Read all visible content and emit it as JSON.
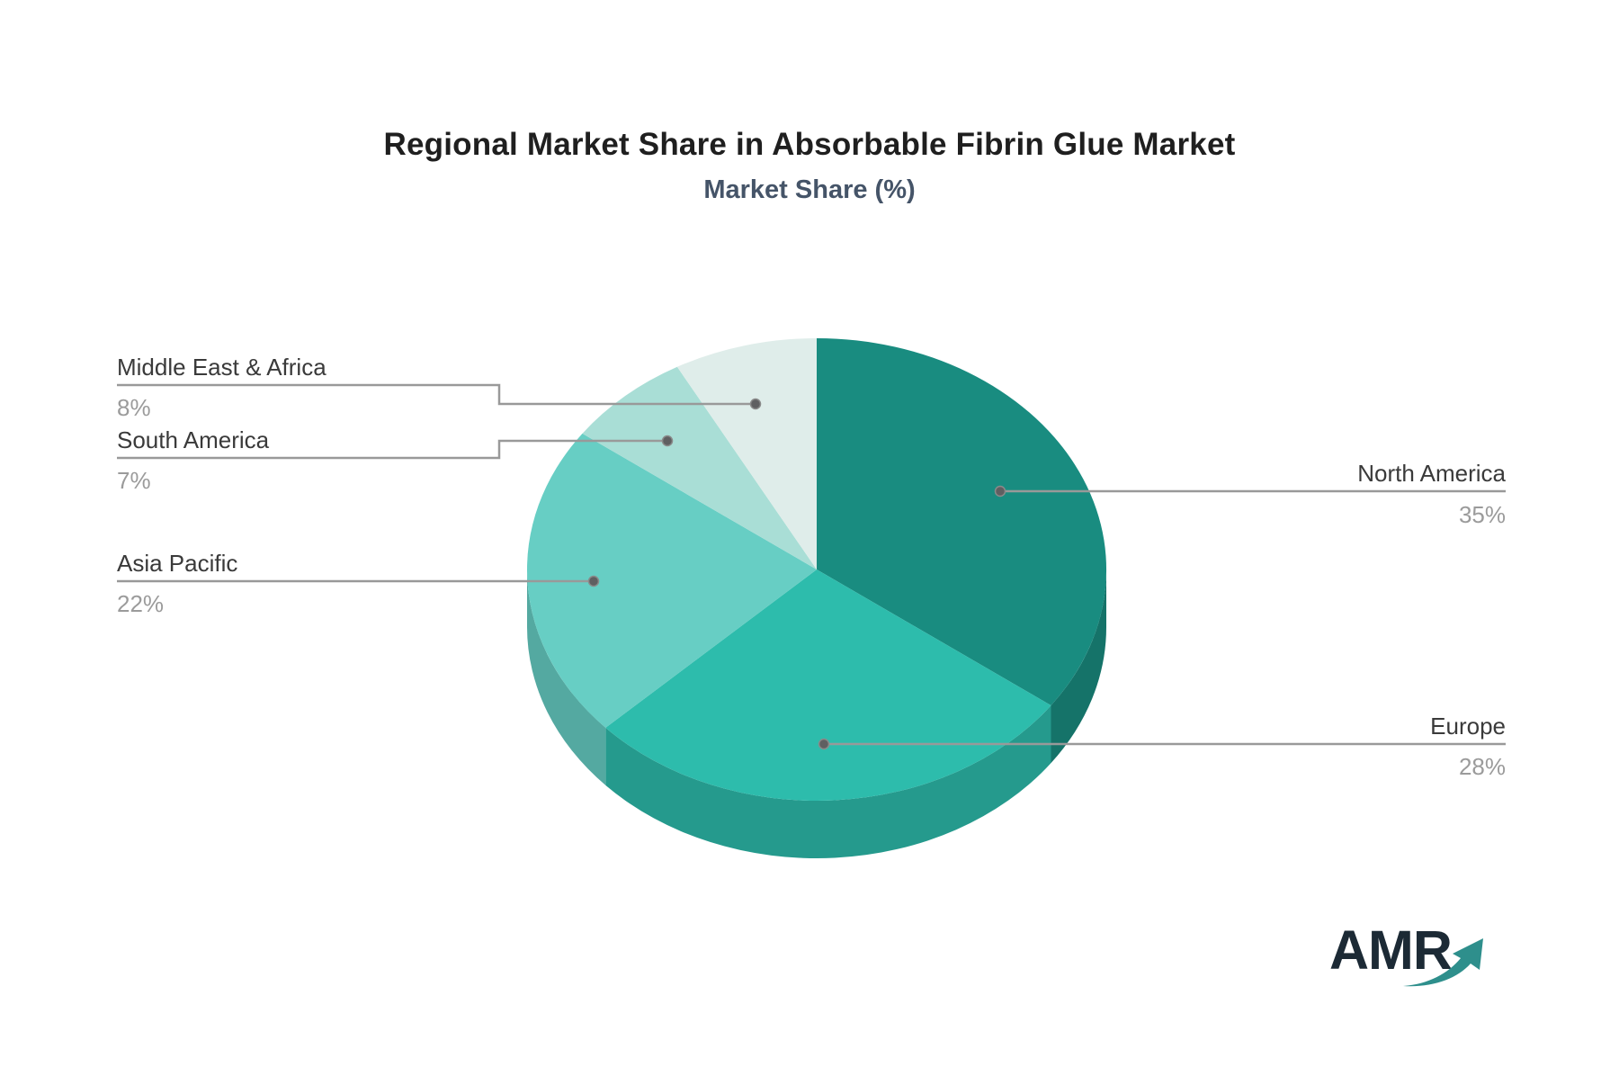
{
  "title": "Regional Market Share in Absorbable Fibrin Glue Market",
  "subtitle": "Market Share (%)",
  "logo": {
    "text": "AMR",
    "icon": "growth-arrow-icon",
    "text_color": "#1c2a35",
    "arrow_color": "#2e8f8c"
  },
  "colors": {
    "background": "#ffffff",
    "title_text": "#1f1f1f",
    "subtitle_text": "#455468",
    "label_text": "#3a3a3a",
    "value_text": "#9b9b9b",
    "leader_line": "#999999",
    "leader_dot": "#5f5f61"
  },
  "chart_data": {
    "type": "pie",
    "style": "3d",
    "title": "Regional Market Share in Absorbable Fibrin Glue Market",
    "subtitle": "Market Share (%)",
    "unit": "%",
    "start_angle_deg": 0,
    "direction": "clockwise",
    "legend_position": "callout-labels",
    "slices": [
      {
        "label": "North America",
        "value": 35,
        "display": "35%",
        "color": "#198c80"
      },
      {
        "label": "Europe",
        "value": 28,
        "display": "28%",
        "color": "#2dbcac"
      },
      {
        "label": "Asia Pacific",
        "value": 22,
        "display": "22%",
        "color": "#67cec4"
      },
      {
        "label": "South America",
        "value": 7,
        "display": "7%",
        "color": "#a9ded6"
      },
      {
        "label": "Middle East & Africa",
        "value": 8,
        "display": "8%",
        "color": "#dfedea"
      }
    ]
  }
}
